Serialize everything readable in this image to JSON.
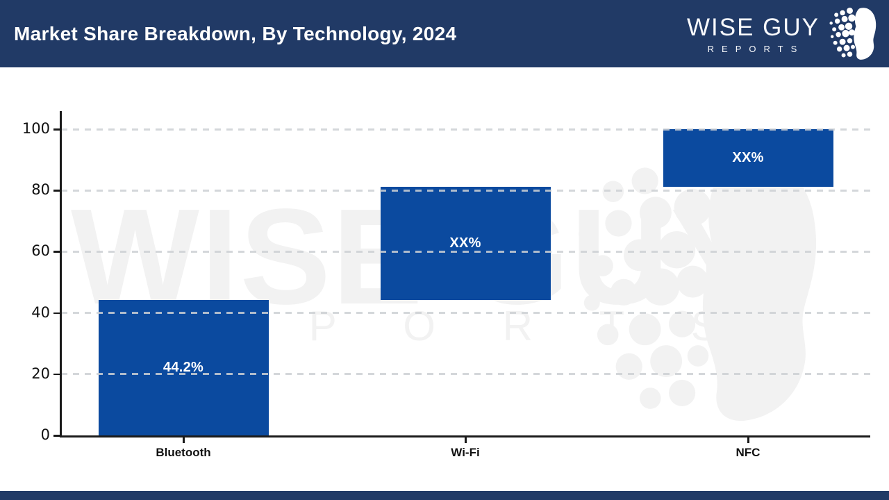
{
  "header": {
    "title": "Market Share Breakdown, By Technology, 2024",
    "logo": {
      "line1": "WISE GUY",
      "line2": "REPORTS"
    },
    "bg_color": "#213a66"
  },
  "watermark": {
    "line1": "WISE GUY",
    "line2": "R E P O R T S"
  },
  "chart_data": {
    "type": "bar",
    "subtype": "waterfall",
    "title": "Market Share Breakdown, By Technology, 2024",
    "categories": [
      "Bluetooth",
      "Wi-Fi",
      "NFC"
    ],
    "segments": [
      {
        "category": "Bluetooth",
        "start": 0,
        "end": 44.2,
        "label": "44.2%"
      },
      {
        "category": "Wi-Fi",
        "start": 44.2,
        "end": 81.2,
        "label": "XX%"
      },
      {
        "category": "NFC",
        "start": 81.2,
        "end": 100,
        "label": "XX%"
      }
    ],
    "ylim": [
      0,
      105
    ],
    "yticks": [
      0,
      20,
      40,
      60,
      80,
      100
    ],
    "grid": "dashed-horizontal",
    "legend": "none",
    "bar_color": "#0b4a9f",
    "bar_label_color": "#ffffff",
    "xlabel": "",
    "ylabel": ""
  },
  "footer": {
    "bg_color": "#213a66"
  }
}
